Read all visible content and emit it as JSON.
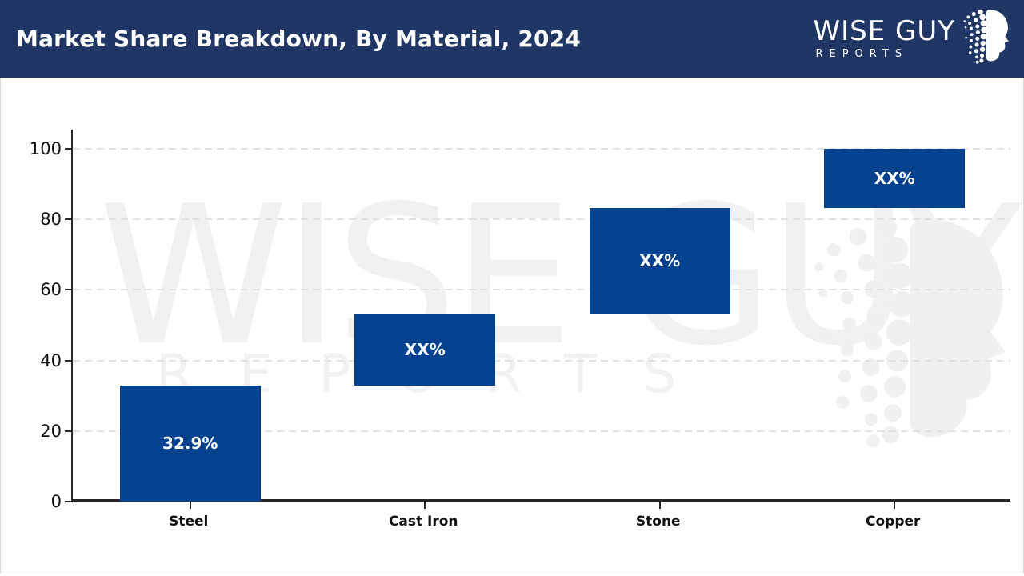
{
  "header": {
    "title": "Market Share Breakdown, By Material, 2024",
    "logo": {
      "line1": "WISE GUY",
      "line2": "REPORTS"
    }
  },
  "watermark": {
    "line1": "WISE GUY",
    "line2": "REPORTS"
  },
  "colors": {
    "header_bg": "#203665",
    "bar": "#04418F",
    "bar_label": "#FFFFFF",
    "axis": "#262626",
    "gridline": "#E2E2E2",
    "watermark": "#F1F1F3",
    "text": "#111111",
    "page_border": "#D8D8D8"
  },
  "chart_data": {
    "type": "bar",
    "subtype": "waterfall-floating-bars",
    "title": "Market Share Breakdown, By Material, 2024",
    "categories": [
      "Steel",
      "Cast Iron",
      "Stone",
      "Copper"
    ],
    "series": [
      {
        "name": "Market share (%)",
        "segments": [
          {
            "category": "Steel",
            "start": 0,
            "end": 32.9,
            "label": "32.9%"
          },
          {
            "category": "Cast Iron",
            "start": 32.9,
            "end": 53.3,
            "label": "XX%"
          },
          {
            "category": "Stone",
            "start": 53.3,
            "end": 83.3,
            "label": "XX%"
          },
          {
            "category": "Copper",
            "start": 83.3,
            "end": 100,
            "label": "XX%"
          }
        ]
      }
    ],
    "xlabel": "",
    "ylabel": "",
    "ylim": [
      0,
      100
    ],
    "yticks": [
      0,
      20,
      40,
      60,
      80,
      100
    ],
    "grid": "horizontal-dashed",
    "legend": "none",
    "bar_value_label_position": "center"
  }
}
